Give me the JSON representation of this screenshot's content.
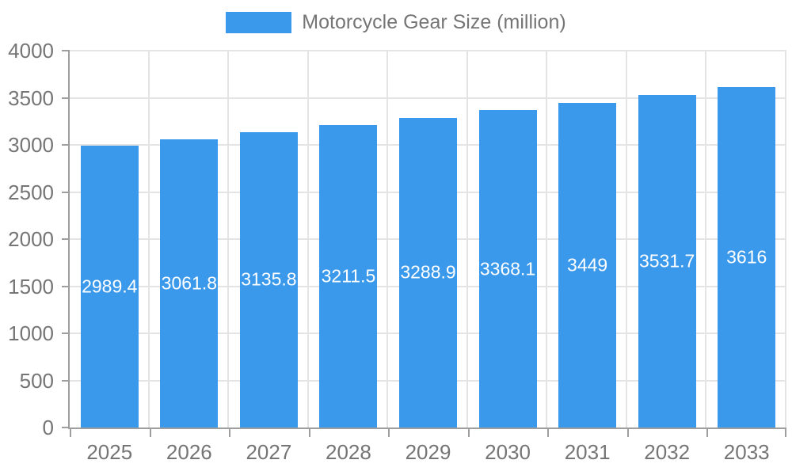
{
  "chart_data": {
    "type": "bar",
    "title": "Motorcycle Gear Size (million)",
    "legend_position": "top-center",
    "legend": [
      "Motorcycle Gear Size (million)"
    ],
    "categories": [
      "2025",
      "2026",
      "2027",
      "2028",
      "2029",
      "2030",
      "2031",
      "2032",
      "2033"
    ],
    "series": [
      {
        "name": "Motorcycle Gear Size (million)",
        "values": [
          2989.4,
          3061.8,
          3135.8,
          3211.5,
          3288.9,
          3368.1,
          3449,
          3531.7,
          3616
        ]
      }
    ],
    "bar_value_labels": [
      "2989.4",
      "3061.8",
      "3135.8",
      "3211.5",
      "3288.9",
      "3368.1",
      "3449",
      "3531.7",
      "3616"
    ],
    "xlabel": "",
    "ylabel": "",
    "ylim": [
      0,
      4000
    ],
    "yticks": [
      0,
      500,
      1000,
      1500,
      2000,
      2500,
      3000,
      3500,
      4000
    ],
    "grid": true
  },
  "colors": {
    "bar": "#3B99EC",
    "bar_label_text": "#FFFFFF",
    "axis_text": "#757575",
    "legend_text": "#757575",
    "gridline": "#E4E4E4",
    "axis_line": "#9E9E9E",
    "background": "#FFFFFF"
  }
}
